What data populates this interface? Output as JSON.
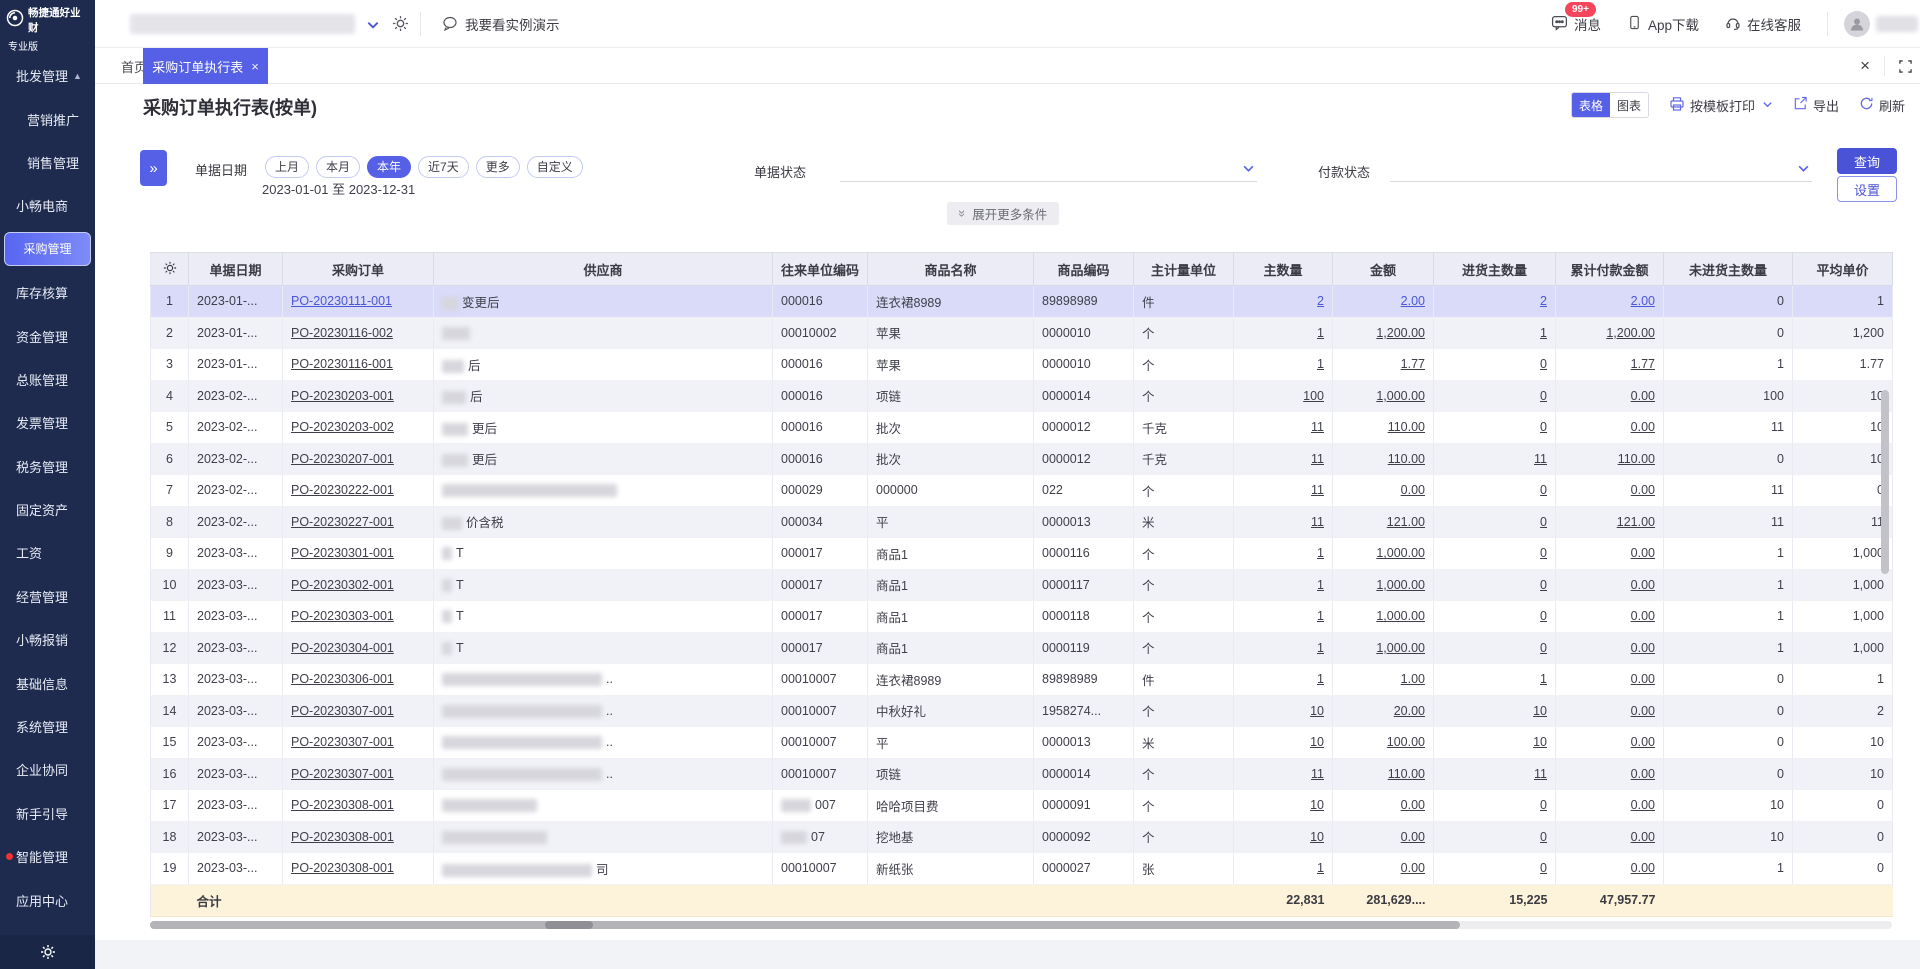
{
  "topbar": {
    "logo_title": "畅捷通好业财",
    "logo_edition": "专业版",
    "demo_text": "我要看实例演示",
    "messages_label": "消息",
    "messages_badge": "99+",
    "app_label": "App下载",
    "support_label": "在线客服"
  },
  "tabs": {
    "home": "首页",
    "active_tab": "采购订单执行表",
    "close": "×"
  },
  "sidebar": {
    "items": [
      {
        "label": "批发管理",
        "arrow": "▲"
      },
      {
        "label": "营销推广",
        "child": true
      },
      {
        "label": "销售管理",
        "child": true
      },
      {
        "label": "小畅电商"
      },
      {
        "label": "采购管理",
        "active": true
      },
      {
        "label": "库存核算"
      },
      {
        "label": "资金管理"
      },
      {
        "label": "总账管理"
      },
      {
        "label": "发票管理"
      },
      {
        "label": "税务管理"
      },
      {
        "label": "固定资产"
      },
      {
        "label": "工资"
      },
      {
        "label": "经营管理"
      },
      {
        "label": "小畅报销"
      },
      {
        "label": "基础信息"
      },
      {
        "label": "系统管理"
      },
      {
        "label": "企业协同"
      },
      {
        "label": "新手引导"
      },
      {
        "label": "智能管理",
        "dot": true
      },
      {
        "label": "应用中心"
      }
    ]
  },
  "page_header": {
    "title": "采购订单执行表(按单)",
    "toggle_table": "表格",
    "toggle_chart": "图表",
    "print_label": "按模板打印",
    "export_label": "导出",
    "refresh_label": "刷新"
  },
  "filters": {
    "date_label": "单据日期",
    "pills": [
      {
        "label": "上月"
      },
      {
        "label": "本月"
      },
      {
        "label": "本年",
        "active": true
      },
      {
        "label": "近7天"
      },
      {
        "label": "更多"
      },
      {
        "label": "自定义"
      }
    ],
    "date_range": "2023-01-01 至 2023-12-31",
    "doc_status_label": "单据状态",
    "pay_status_label": "付款状态",
    "expand_more": "展开更多条件",
    "query_btn": "查询",
    "settings_btn": "设置"
  },
  "table": {
    "headers": [
      "单据日期",
      "采购订单",
      "供应商",
      "往来单位编码",
      "商品名称",
      "商品编码",
      "主计量单位",
      "主数量",
      "金额",
      "进货主数量",
      "累计付款金额",
      "未进货主数量",
      "平均单价"
    ],
    "rows": [
      {
        "n": "1",
        "date": "2023-01-...",
        "po": "PO-20230111-001",
        "supBlur": 16,
        "sup": "变更后",
        "code": "000016",
        "name": "连衣裙8989",
        "pcode": "89898989",
        "unit": "件",
        "qty": "2",
        "amt": "2.00",
        "rqty": "2",
        "paid": "2.00",
        "uqty": "0",
        "avg": "1",
        "selected": true
      },
      {
        "n": "2",
        "date": "2023-01-...",
        "po": "PO-20230116-002",
        "supBlur": 28,
        "sup": "",
        "code": "00010002",
        "name": "苹果",
        "pcode": "0000010",
        "unit": "个",
        "qty": "1",
        "amt": "1,200.00",
        "rqty": "1",
        "paid": "1,200.00",
        "uqty": "0",
        "avg": "1,200"
      },
      {
        "n": "3",
        "date": "2023-01-...",
        "po": "PO-20230116-001",
        "supBlur": 22,
        "sup": "后",
        "code": "000016",
        "name": "苹果",
        "pcode": "0000010",
        "unit": "个",
        "qty": "1",
        "amt": "1.77",
        "rqty": "0",
        "paid": "1.77",
        "uqty": "1",
        "avg": "1.77"
      },
      {
        "n": "4",
        "date": "2023-02-...",
        "po": "PO-20230203-001",
        "supBlur": 24,
        "sup": "后",
        "code": "000016",
        "name": "项链",
        "pcode": "0000014",
        "unit": "个",
        "qty": "100",
        "amt": "1,000.00",
        "rqty": "0",
        "paid": "0.00",
        "uqty": "100",
        "avg": "10"
      },
      {
        "n": "5",
        "date": "2023-02-...",
        "po": "PO-20230203-002",
        "supBlur": 26,
        "sup": "更后",
        "code": "000016",
        "name": "批次",
        "pcode": "0000012",
        "unit": "千克",
        "qty": "11",
        "amt": "110.00",
        "rqty": "0",
        "paid": "0.00",
        "uqty": "11",
        "avg": "10"
      },
      {
        "n": "6",
        "date": "2023-02-...",
        "po": "PO-20230207-001",
        "supBlur": 26,
        "sup": "更后",
        "code": "000016",
        "name": "批次",
        "pcode": "0000012",
        "unit": "千克",
        "qty": "11",
        "amt": "110.00",
        "rqty": "11",
        "paid": "110.00",
        "uqty": "0",
        "avg": "10"
      },
      {
        "n": "7",
        "date": "2023-02-...",
        "po": "PO-20230222-001",
        "supBlur": 175,
        "sup": "",
        "code": "000029",
        "name": "000000",
        "pcode": "022",
        "unit": "个",
        "qty": "11",
        "amt": "0.00",
        "rqty": "0",
        "paid": "0.00",
        "uqty": "11",
        "avg": "0"
      },
      {
        "n": "8",
        "date": "2023-02-...",
        "po": "PO-20230227-001",
        "supBlur": 20,
        "sup": "价含税",
        "code": "000034",
        "name": "平",
        "pcode": "0000013",
        "unit": "米",
        "qty": "11",
        "amt": "121.00",
        "rqty": "0",
        "paid": "121.00",
        "uqty": "11",
        "avg": "11"
      },
      {
        "n": "9",
        "date": "2023-03-...",
        "po": "PO-20230301-001",
        "supBlur": 10,
        "sup": "T",
        "code": "000017",
        "name": "商品1",
        "pcode": "0000116",
        "unit": "个",
        "qty": "1",
        "amt": "1,000.00",
        "rqty": "0",
        "paid": "0.00",
        "uqty": "1",
        "avg": "1,000"
      },
      {
        "n": "10",
        "date": "2023-03-...",
        "po": "PO-20230302-001",
        "supBlur": 10,
        "sup": "T",
        "code": "000017",
        "name": "商品1",
        "pcode": "0000117",
        "unit": "个",
        "qty": "1",
        "amt": "1,000.00",
        "rqty": "0",
        "paid": "0.00",
        "uqty": "1",
        "avg": "1,000"
      },
      {
        "n": "11",
        "date": "2023-03-...",
        "po": "PO-20230303-001",
        "supBlur": 10,
        "sup": "T",
        "code": "000017",
        "name": "商品1",
        "pcode": "0000118",
        "unit": "个",
        "qty": "1",
        "amt": "1,000.00",
        "rqty": "0",
        "paid": "0.00",
        "uqty": "1",
        "avg": "1,000"
      },
      {
        "n": "12",
        "date": "2023-03-...",
        "po": "PO-20230304-001",
        "supBlur": 10,
        "sup": "T",
        "code": "000017",
        "name": "商品1",
        "pcode": "0000119",
        "unit": "个",
        "qty": "1",
        "amt": "1,000.00",
        "rqty": "0",
        "paid": "0.00",
        "uqty": "1",
        "avg": "1,000"
      },
      {
        "n": "13",
        "date": "2023-03-...",
        "po": "PO-20230306-001",
        "supBlur": 160,
        "sup": "..",
        "code": "00010007",
        "name": "连衣裙8989",
        "pcode": "89898989",
        "unit": "件",
        "qty": "1",
        "amt": "1.00",
        "rqty": "1",
        "paid": "0.00",
        "uqty": "0",
        "avg": "1"
      },
      {
        "n": "14",
        "date": "2023-03-...",
        "po": "PO-20230307-001",
        "supBlur": 160,
        "sup": "..",
        "code": "00010007",
        "name": "中秋好礼",
        "pcode": "1958274...",
        "unit": "个",
        "qty": "10",
        "amt": "20.00",
        "rqty": "10",
        "paid": "0.00",
        "uqty": "0",
        "avg": "2"
      },
      {
        "n": "15",
        "date": "2023-03-...",
        "po": "PO-20230307-001",
        "supBlur": 160,
        "sup": "..",
        "code": "00010007",
        "name": "平",
        "pcode": "0000013",
        "unit": "米",
        "qty": "10",
        "amt": "100.00",
        "rqty": "10",
        "paid": "0.00",
        "uqty": "0",
        "avg": "10"
      },
      {
        "n": "16",
        "date": "2023-03-...",
        "po": "PO-20230307-001",
        "supBlur": 160,
        "sup": "..",
        "code": "00010007",
        "name": "项链",
        "pcode": "0000014",
        "unit": "个",
        "qty": "11",
        "amt": "110.00",
        "rqty": "11",
        "paid": "0.00",
        "uqty": "0",
        "avg": "10"
      },
      {
        "n": "17",
        "date": "2023-03-...",
        "po": "PO-20230308-001",
        "supBlur": 95,
        "sup": "",
        "codeBlur": 30,
        "code": "007",
        "name": "哈哈项目费",
        "pcode": "0000091",
        "unit": "个",
        "qty": "10",
        "amt": "0.00",
        "rqty": "0",
        "paid": "0.00",
        "uqty": "10",
        "avg": "0"
      },
      {
        "n": "18",
        "date": "2023-03-...",
        "po": "PO-20230308-001",
        "supBlur": 105,
        "sup": "",
        "codeBlur": 26,
        "code": "07",
        "name": "挖地基",
        "pcode": "0000092",
        "unit": "个",
        "qty": "10",
        "amt": "0.00",
        "rqty": "0",
        "paid": "0.00",
        "uqty": "10",
        "avg": "0"
      },
      {
        "n": "19",
        "date": "2023-03-...",
        "po": "PO-20230308-001",
        "supBlur": 150,
        "sup": "司",
        "code": "00010007",
        "name": "新纸张",
        "pcode": "0000027",
        "unit": "张",
        "qty": "1",
        "amt": "0.00",
        "rqty": "0",
        "paid": "0.00",
        "uqty": "1",
        "avg": "0"
      }
    ],
    "total": {
      "label": "合计",
      "qty": "22,831",
      "amount": "281,629....",
      "recv_qty": "15,225",
      "paid": "47,957.77"
    }
  },
  "colors": {
    "primary": "#5560e6",
    "primary_dark": "#4a53d8",
    "sidebar_bg": "#1e2b4f",
    "badge_red": "#f5455c",
    "row_selected": "#d9dbf8",
    "header_bg": "#ebecf5",
    "total_bg": "#fdf3db"
  }
}
